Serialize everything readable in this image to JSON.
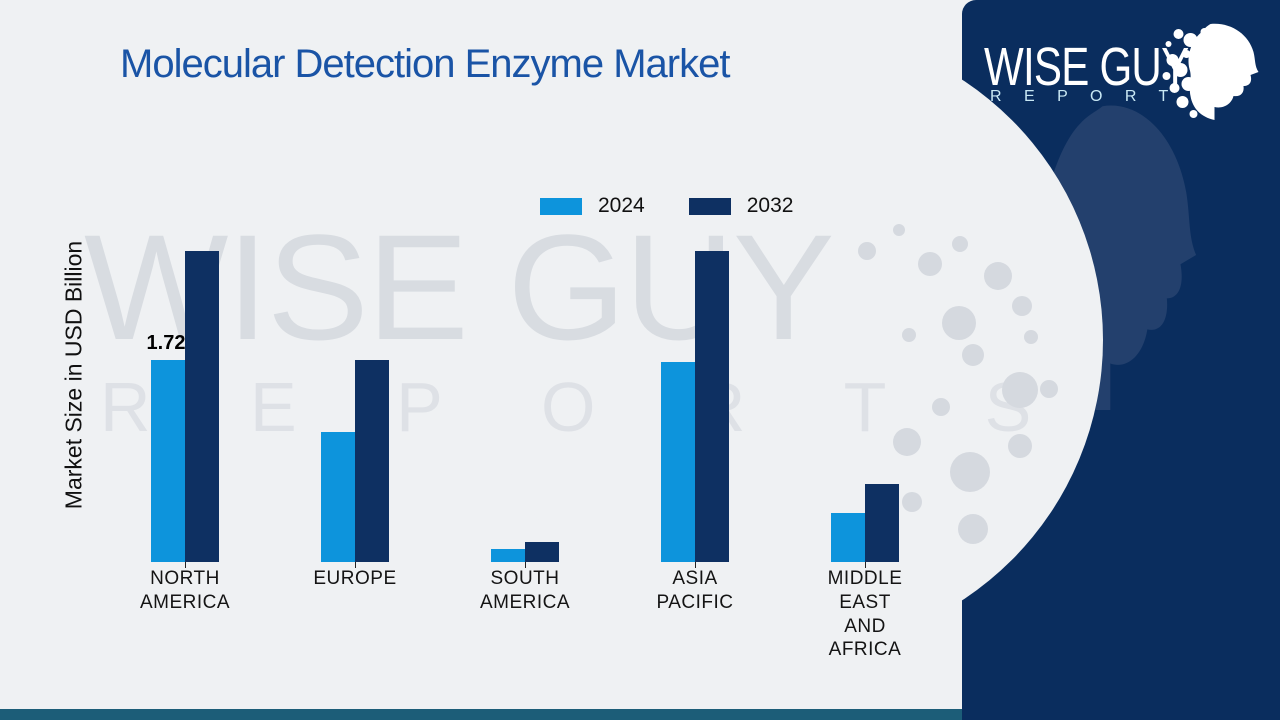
{
  "title": "Molecular Detection Enzyme Market",
  "watermark": {
    "line1": "WISE GUY",
    "line2": "R E P O R T S"
  },
  "logo": {
    "brand_line1": "WISE GUY",
    "brand_line2": "R E P O R T S",
    "face_icon": "dotted-face-profile-icon"
  },
  "colors": {
    "accent_2024": "#0d94dc",
    "accent_2032": "#0e3062",
    "panel_navy": "#0a2d5e",
    "footer_teal": "#1c5d78",
    "title_blue": "#1a54a6",
    "watermark_gray": "#d8dce1"
  },
  "chart_data": {
    "type": "bar",
    "title": "Molecular Detection Enzyme Market",
    "xlabel": "",
    "ylabel": "Market Size in USD Billion",
    "ylim": [
      0,
      2.8
    ],
    "grid": false,
    "legend_position": "top",
    "categories": [
      "North America",
      "Europe",
      "South America",
      "Asia Pacific",
      "Middle East and Africa"
    ],
    "category_display": [
      "NORTH\nAMERICA",
      "EUROPE",
      "SOUTH\nAMERICA",
      "ASIA\nPACIFIC",
      "MIDDLE\nEAST\nAND\nAFRICA"
    ],
    "series": [
      {
        "name": "2024",
        "color": "#0d94dc",
        "values": [
          1.72,
          1.11,
          0.11,
          1.7,
          0.42
        ]
      },
      {
        "name": "2032",
        "color": "#0e3062",
        "values": [
          2.65,
          1.72,
          0.17,
          2.65,
          0.66
        ]
      }
    ],
    "annotations": [
      {
        "series": "2024",
        "category": "North America",
        "text": "1.72",
        "value": 1.72
      }
    ]
  }
}
